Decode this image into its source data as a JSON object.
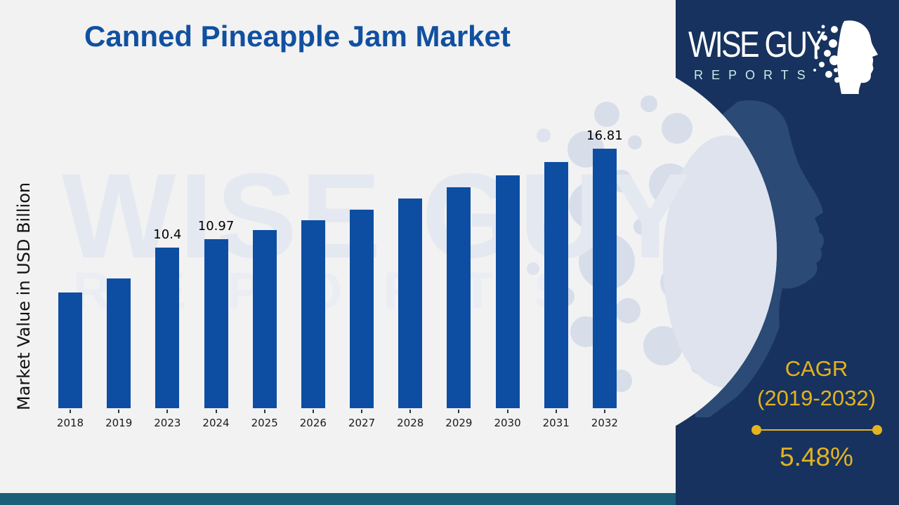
{
  "title": "Canned Pineapple Jam Market",
  "watermark": {
    "line1": "WISE GUY",
    "line2": "REPORTS"
  },
  "brand": {
    "name": "WISE GUY",
    "subname": "REPORTS",
    "head_icon": "dotted-head-profile"
  },
  "cagr": {
    "heading": "CAGR",
    "range": "(2019-2032)",
    "value": "5.48%"
  },
  "colors": {
    "background": "#f2f2f2",
    "bar_blue": "#0d4ea3",
    "title_blue": "#1150a0",
    "panel_navy": "#17325e",
    "face_blue": "#2b4a75",
    "gold": "#e5b31f",
    "teal_strip": "#1a6078",
    "watermark_gray": "#e4e8f0"
  },
  "chart_data": {
    "type": "bar",
    "title": "Canned Pineapple Jam Market",
    "xlabel": "",
    "ylabel": "Market Value in USD Billion",
    "categories": [
      "2018",
      "2019",
      "2023",
      "2024",
      "2025",
      "2026",
      "2027",
      "2028",
      "2029",
      "2030",
      "2031",
      "2032"
    ],
    "values": [
      7.5,
      8.4,
      10.4,
      10.97,
      11.57,
      12.2,
      12.87,
      13.58,
      14.32,
      15.11,
      15.94,
      16.81
    ],
    "bar_labels": [
      "",
      "",
      "10.4",
      "10.97",
      "",
      "",
      "",
      "",
      "",
      "",
      "",
      "16.81"
    ],
    "ylim": [
      0,
      18
    ],
    "grid": false,
    "legend": false,
    "bar_color": "#0d4ea3"
  }
}
